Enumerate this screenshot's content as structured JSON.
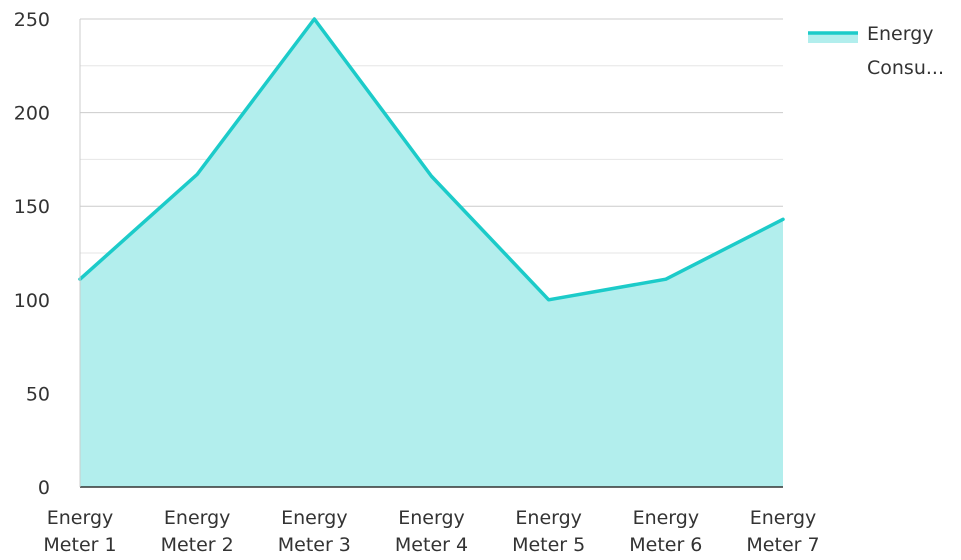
{
  "chart_data": {
    "type": "area",
    "title": "",
    "xlabel": "",
    "ylabel": "",
    "categories": [
      [
        "Energy",
        "Meter 1"
      ],
      [
        "Energy",
        "Meter 2"
      ],
      [
        "Energy",
        "Meter 3"
      ],
      [
        "Energy",
        "Meter 4"
      ],
      [
        "Energy",
        "Meter 5"
      ],
      [
        "Energy",
        "Meter 6"
      ],
      [
        "Energy",
        "Meter 7"
      ]
    ],
    "series": [
      {
        "name": "Energy Consu...",
        "name_lines": [
          "Energy",
          "Consu..."
        ],
        "values": [
          111,
          167,
          250,
          166,
          100,
          111,
          143
        ],
        "color": "#1ccbc9",
        "fill": "#b2eeed"
      }
    ],
    "ylim": [
      0,
      250
    ],
    "yticks": [
      0,
      50,
      100,
      150,
      200,
      250
    ],
    "grid": true,
    "legend": "top-right"
  }
}
